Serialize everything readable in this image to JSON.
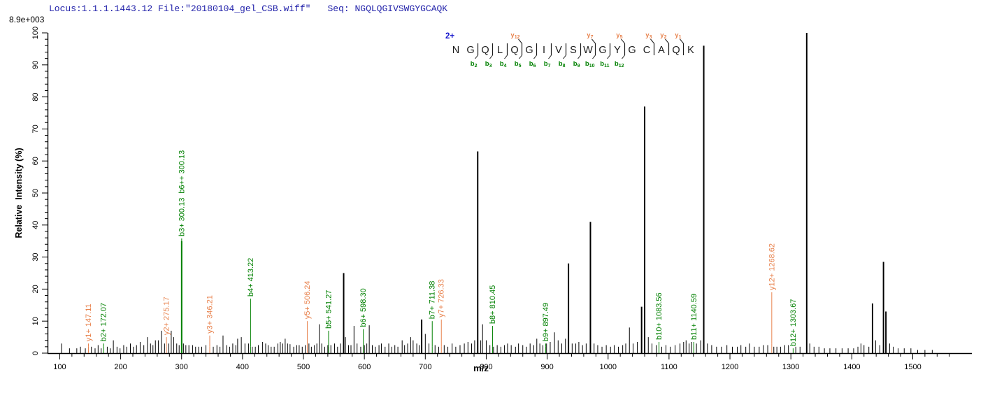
{
  "colors": {
    "header_text": "#2222aa",
    "charge_label": "#1414cc",
    "b_ion": "#008000",
    "y_ion": "#e8824d",
    "peak": "#000000",
    "axis": "#000000",
    "residue": "#1a1a1a"
  },
  "header": {
    "locus_file": "Locus:1.1.1.1443.12 File:\"20180104_gel_CSB.wiff\"",
    "seq": "Seq: NGQLQGIVSWGYGCAQK"
  },
  "sequence_annotation": {
    "charge": "2+",
    "residues": [
      "N",
      "G",
      "Q",
      "L",
      "Q",
      "G",
      "I",
      "V",
      "S",
      "W",
      "G",
      "Y",
      "G",
      "C",
      "A",
      "Q",
      "K"
    ],
    "cleavages": [
      {
        "after": 2,
        "b": "b2"
      },
      {
        "after": 3,
        "b": "b3"
      },
      {
        "after": 4,
        "b": "b4"
      },
      {
        "after": 5,
        "b": "b5",
        "y": "y12"
      },
      {
        "after": 6,
        "b": "b6"
      },
      {
        "after": 7,
        "b": "b7"
      },
      {
        "after": 8,
        "b": "b8"
      },
      {
        "after": 9,
        "b": "b9"
      },
      {
        "after": 10,
        "b": "b10",
        "y": "y7"
      },
      {
        "after": 11,
        "b": "b11"
      },
      {
        "after": 12,
        "b": "b12",
        "y": "y5"
      },
      {
        "after": 14,
        "y": "y3"
      },
      {
        "after": 15,
        "y": "y2"
      },
      {
        "after": 16,
        "y": "y1"
      }
    ]
  },
  "chart_data": {
    "type": "bar",
    "subtype": "ms2-fragmentation-stick-spectrum",
    "title": "Locus:1.1.1.1443.12 File:\"20180104_gel_CSB.wiff\" Seq: NGQLQGIVSWGYGCAQK",
    "base_peak_intensity_label": "8.9e+003",
    "xlabel": "m/z",
    "ylabel": "Relative  Intensity (%)",
    "xlim": [
      80,
      1597
    ],
    "ylim": [
      0,
      100
    ],
    "grid": false,
    "x_major_ticks": [
      100,
      200,
      300,
      400,
      500,
      600,
      700,
      800,
      900,
      1000,
      1100,
      1200,
      1300,
      1400,
      1500
    ],
    "x_minor_step": 20,
    "x_minor_max": 1560,
    "y_major_ticks": [
      0,
      10,
      20,
      30,
      40,
      50,
      60,
      70,
      80,
      90,
      100
    ],
    "y_minor_step": 2,
    "annotated_peaks": [
      {
        "label": "y1+ 147.11",
        "ion": "y",
        "mz": 147.11,
        "intensity": 2,
        "label_base": 3
      },
      {
        "label": "b2+ 172.07",
        "ion": "b",
        "mz": 172.07,
        "intensity": 2,
        "label_base": 3
      },
      {
        "label": "y2+ 275.17",
        "ion": "y",
        "mz": 275.17,
        "intensity": 2,
        "label_base": 5
      },
      {
        "label": "b3+ 300.13  b6++ 300.13",
        "ion": "b",
        "mz": 300.13,
        "intensity": 35,
        "label_base": 35.8
      },
      {
        "label": "y3+ 346.21",
        "ion": "y",
        "mz": 346.21,
        "intensity": 2,
        "label_base": 5.5
      },
      {
        "label": "b4+ 413.22",
        "ion": "b",
        "mz": 413.22,
        "intensity": 2,
        "label_base": 17
      },
      {
        "label": "y5+ 506.24",
        "ion": "y",
        "mz": 506.24,
        "intensity": 2.5,
        "label_base": 10
      },
      {
        "label": "b5+ 541.27",
        "ion": "b",
        "mz": 541.27,
        "intensity": 2,
        "label_base": 7
      },
      {
        "label": "b6+ 598.30",
        "ion": "b",
        "mz": 598.3,
        "intensity": 2,
        "label_base": 7.5
      },
      {
        "label": "b7+ 711.38",
        "ion": "b",
        "mz": 711.38,
        "intensity": 2,
        "label_base": 10
      },
      {
        "label": "y7+ 726.33",
        "ion": "y",
        "mz": 726.33,
        "intensity": 2,
        "label_base": 10.5
      },
      {
        "label": "b8+ 810.45",
        "ion": "b",
        "mz": 810.45,
        "intensity": 2,
        "label_base": 8.5
      },
      {
        "label": "b9+ 897.49",
        "ion": "b",
        "mz": 897.49,
        "intensity": 2,
        "label_base": 3
      },
      {
        "label": "b10+ 1083.56",
        "ion": "b",
        "mz": 1083.56,
        "intensity": 2.5,
        "label_base": 3.5
      },
      {
        "label": "b11+ 1140.59",
        "ion": "b",
        "mz": 1140.59,
        "intensity": 2.5,
        "label_base": 3.5
      },
      {
        "label": "y12+ 1268.62",
        "ion": "y",
        "mz": 1268.62,
        "intensity": 3,
        "label_base": 19
      },
      {
        "label": "b12+ 1303.67",
        "ion": "b",
        "mz": 1303.67,
        "intensity": 1.5,
        "label_base": 1.5
      }
    ],
    "peaks": [
      [
        103,
        3
      ],
      [
        116,
        1.5
      ],
      [
        128,
        1.5
      ],
      [
        134,
        2
      ],
      [
        142,
        1.5
      ],
      [
        152,
        2
      ],
      [
        158,
        1.5
      ],
      [
        163,
        2.5
      ],
      [
        168,
        1.5
      ],
      [
        178,
        2
      ],
      [
        183,
        1.5
      ],
      [
        188,
        4
      ],
      [
        194,
        2
      ],
      [
        199,
        1.5
      ],
      [
        205,
        2.5
      ],
      [
        210,
        2
      ],
      [
        216,
        3
      ],
      [
        221,
        2
      ],
      [
        226,
        2.5
      ],
      [
        232,
        3.5
      ],
      [
        238,
        2.5
      ],
      [
        244,
        5
      ],
      [
        249,
        3
      ],
      [
        253,
        2.5
      ],
      [
        257,
        4
      ],
      [
        262,
        4
      ],
      [
        267,
        7
      ],
      [
        272,
        3
      ],
      [
        279,
        3
      ],
      [
        283,
        7
      ],
      [
        287,
        5
      ],
      [
        292,
        3
      ],
      [
        296,
        2.5
      ],
      [
        303,
        3
      ],
      [
        307,
        2.5
      ],
      [
        312,
        2.5
      ],
      [
        318,
        2.5
      ],
      [
        323,
        2
      ],
      [
        328,
        2
      ],
      [
        333,
        2
      ],
      [
        340,
        2.5
      ],
      [
        352,
        2
      ],
      [
        358,
        2.5
      ],
      [
        363,
        2
      ],
      [
        368,
        5.5
      ],
      [
        374,
        2.5
      ],
      [
        379,
        2
      ],
      [
        384,
        3
      ],
      [
        389,
        2.5
      ],
      [
        392,
        4.5
      ],
      [
        398,
        5
      ],
      [
        404,
        3
      ],
      [
        410,
        3
      ],
      [
        416,
        2
      ],
      [
        421,
        2
      ],
      [
        426,
        2.5
      ],
      [
        433,
        3.5
      ],
      [
        438,
        3
      ],
      [
        442,
        2.5
      ],
      [
        447,
        2
      ],
      [
        452,
        2
      ],
      [
        458,
        3
      ],
      [
        462,
        3.5
      ],
      [
        466,
        3
      ],
      [
        470,
        4.5
      ],
      [
        474,
        3
      ],
      [
        478,
        2.8
      ],
      [
        484,
        2
      ],
      [
        489,
        2.5
      ],
      [
        493,
        2.5
      ],
      [
        498,
        2
      ],
      [
        503,
        2.5
      ],
      [
        509,
        3
      ],
      [
        513,
        2
      ],
      [
        518,
        2.5
      ],
      [
        522,
        3
      ],
      [
        526,
        9
      ],
      [
        530,
        3
      ],
      [
        535,
        2
      ],
      [
        540,
        2.5
      ],
      [
        545,
        2.5
      ],
      [
        551,
        3
      ],
      [
        556,
        2
      ],
      [
        561,
        3
      ],
      [
        566,
        25
      ],
      [
        569,
        5
      ],
      [
        574,
        2.5
      ],
      [
        578,
        2.5
      ],
      [
        583,
        8.5
      ],
      [
        588,
        3
      ],
      [
        594,
        2
      ],
      [
        600,
        2.5
      ],
      [
        604,
        3
      ],
      [
        608,
        8.7
      ],
      [
        613,
        2.5
      ],
      [
        618,
        2
      ],
      [
        624,
        2.5
      ],
      [
        628,
        3
      ],
      [
        634,
        2
      ],
      [
        640,
        3
      ],
      [
        645,
        2
      ],
      [
        650,
        2.5
      ],
      [
        655,
        2
      ],
      [
        662,
        4
      ],
      [
        666,
        2.5
      ],
      [
        671,
        3
      ],
      [
        676,
        5
      ],
      [
        680,
        4
      ],
      [
        686,
        3
      ],
      [
        690,
        2.5
      ],
      [
        694,
        10.5
      ],
      [
        700,
        6
      ],
      [
        706,
        3
      ],
      [
        716,
        2.5
      ],
      [
        722,
        2
      ],
      [
        731,
        2.5
      ],
      [
        737,
        2
      ],
      [
        744,
        3
      ],
      [
        750,
        2
      ],
      [
        757,
        2.5
      ],
      [
        764,
        3
      ],
      [
        770,
        3.5
      ],
      [
        776,
        3
      ],
      [
        781,
        4
      ],
      [
        786,
        63
      ],
      [
        791,
        4
      ],
      [
        794,
        9
      ],
      [
        800,
        4
      ],
      [
        806,
        2.5
      ],
      [
        812,
        2
      ],
      [
        818,
        2.5
      ],
      [
        824,
        2
      ],
      [
        830,
        2.5
      ],
      [
        835,
        3
      ],
      [
        841,
        2.5
      ],
      [
        848,
        2
      ],
      [
        853,
        3
      ],
      [
        860,
        2.5
      ],
      [
        866,
        2
      ],
      [
        872,
        3
      ],
      [
        878,
        2.5
      ],
      [
        883,
        4.5
      ],
      [
        888,
        3
      ],
      [
        893,
        2.5
      ],
      [
        899,
        3
      ],
      [
        905,
        3.5
      ],
      [
        912,
        6.5
      ],
      [
        918,
        4
      ],
      [
        924,
        3
      ],
      [
        930,
        4.5
      ],
      [
        935,
        28
      ],
      [
        941,
        3
      ],
      [
        947,
        3
      ],
      [
        952,
        3.5
      ],
      [
        958,
        2.5
      ],
      [
        964,
        3
      ],
      [
        971,
        41
      ],
      [
        977,
        3
      ],
      [
        983,
        2.5
      ],
      [
        990,
        2
      ],
      [
        997,
        2.5
      ],
      [
        1004,
        2
      ],
      [
        1010,
        2.5
      ],
      [
        1017,
        2
      ],
      [
        1024,
        2.5
      ],
      [
        1029,
        3
      ],
      [
        1035,
        8
      ],
      [
        1041,
        3
      ],
      [
        1048,
        3.5
      ],
      [
        1055,
        14.5
      ],
      [
        1060,
        77
      ],
      [
        1066,
        5
      ],
      [
        1072,
        3
      ],
      [
        1079,
        2.5
      ],
      [
        1088,
        2
      ],
      [
        1095,
        2.5
      ],
      [
        1102,
        2
      ],
      [
        1110,
        2.5
      ],
      [
        1118,
        3
      ],
      [
        1124,
        3.5
      ],
      [
        1128,
        4
      ],
      [
        1133,
        3
      ],
      [
        1137,
        3.5
      ],
      [
        1145,
        3
      ],
      [
        1152,
        4
      ],
      [
        1157,
        96
      ],
      [
        1163,
        3
      ],
      [
        1170,
        2.5
      ],
      [
        1178,
        2
      ],
      [
        1186,
        2
      ],
      [
        1195,
        2.5
      ],
      [
        1204,
        2
      ],
      [
        1212,
        2
      ],
      [
        1218,
        2.5
      ],
      [
        1226,
        2
      ],
      [
        1232,
        3
      ],
      [
        1240,
        2
      ],
      [
        1248,
        2
      ],
      [
        1255,
        2.5
      ],
      [
        1262,
        2.5
      ],
      [
        1272,
        2
      ],
      [
        1277,
        2
      ],
      [
        1283,
        2
      ],
      [
        1290,
        2.5
      ],
      [
        1296,
        2.5
      ],
      [
        1308,
        2
      ],
      [
        1315,
        2
      ],
      [
        1326,
        100
      ],
      [
        1331,
        3
      ],
      [
        1338,
        2
      ],
      [
        1346,
        2
      ],
      [
        1355,
        1.5
      ],
      [
        1364,
        1.5
      ],
      [
        1374,
        1.5
      ],
      [
        1384,
        1.5
      ],
      [
        1394,
        1.5
      ],
      [
        1403,
        1.5
      ],
      [
        1410,
        2
      ],
      [
        1415,
        3
      ],
      [
        1420,
        2.5
      ],
      [
        1428,
        2
      ],
      [
        1434,
        15.5
      ],
      [
        1439,
        4
      ],
      [
        1446,
        2.5
      ],
      [
        1452,
        28.5
      ],
      [
        1456,
        13
      ],
      [
        1462,
        3
      ],
      [
        1468,
        2
      ],
      [
        1476,
        1.5
      ],
      [
        1486,
        1.5
      ],
      [
        1497,
        1.5
      ],
      [
        1508,
        1
      ],
      [
        1520,
        1
      ],
      [
        1532,
        1
      ]
    ]
  }
}
